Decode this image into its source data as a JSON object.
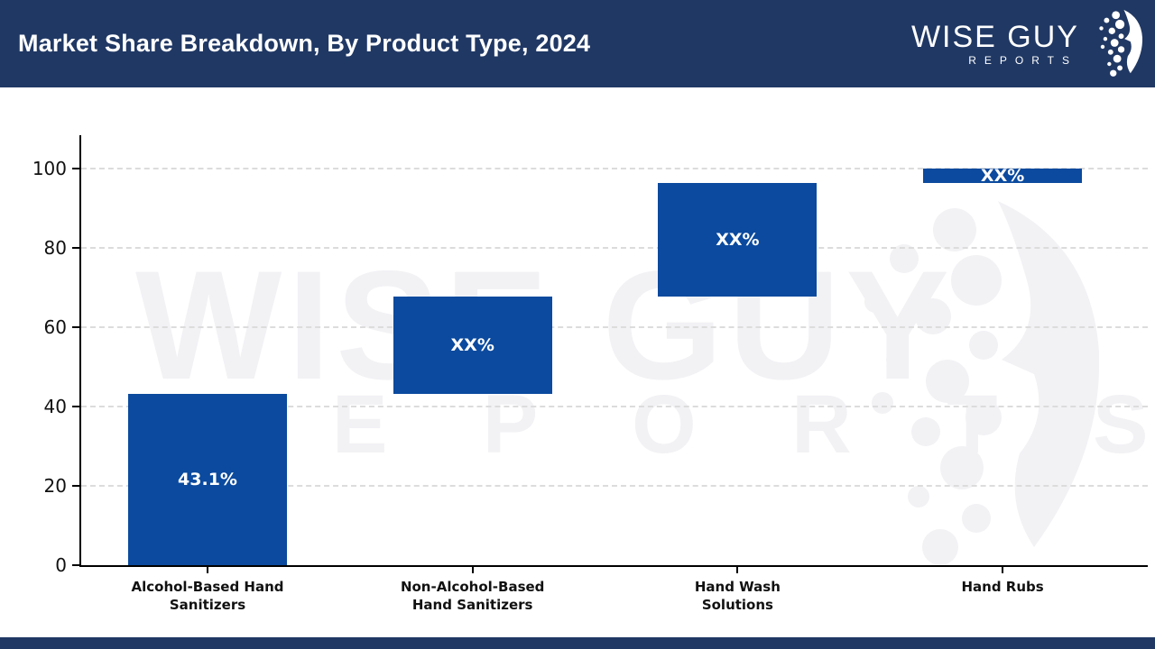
{
  "header": {
    "title": "Market Share Breakdown, By Product Type, 2024",
    "logo": {
      "line1": "WISE GUY",
      "line2": "REPORTS"
    }
  },
  "watermark": {
    "line1": "WISE GUY",
    "line2": "R E P O R T S"
  },
  "footer": {},
  "chart_data": {
    "type": "bar",
    "subtype": "floating-waterfall",
    "title": "Market Share Breakdown, By Product Type, 2024",
    "categories": [
      "Alcohol-Based Hand Sanitizers",
      "Non-Alcohol-Based Hand Sanitizers",
      "Hand Wash Solutions",
      "Hand Rubs"
    ],
    "category_labels_wrapped": [
      [
        "Alcohol-Based Hand",
        "Sanitizers"
      ],
      [
        "Non-Alcohol-Based",
        "Hand Sanitizers"
      ],
      [
        "Hand Wash",
        "Solutions"
      ],
      [
        "Hand Rubs"
      ]
    ],
    "segments": [
      {
        "start": 0,
        "end": 43.1,
        "label": "43.1%"
      },
      {
        "start": 43.1,
        "end": 67.7,
        "label": "XX%"
      },
      {
        "start": 67.7,
        "end": 96.4,
        "label": "XX%"
      },
      {
        "start": 96.4,
        "end": 100,
        "label": "XX%"
      }
    ],
    "yticks": [
      0,
      20,
      40,
      60,
      80,
      100
    ],
    "ylim": [
      0,
      100
    ],
    "grid": "dashed-horizontal",
    "legend": "none"
  },
  "colors": {
    "banner_bg": "#203864",
    "bar": "#0b4a9e",
    "bar_label": "#ffffff",
    "grid": "#dcdcdc",
    "axis": "#000000",
    "watermark": "#f2f2f5"
  }
}
